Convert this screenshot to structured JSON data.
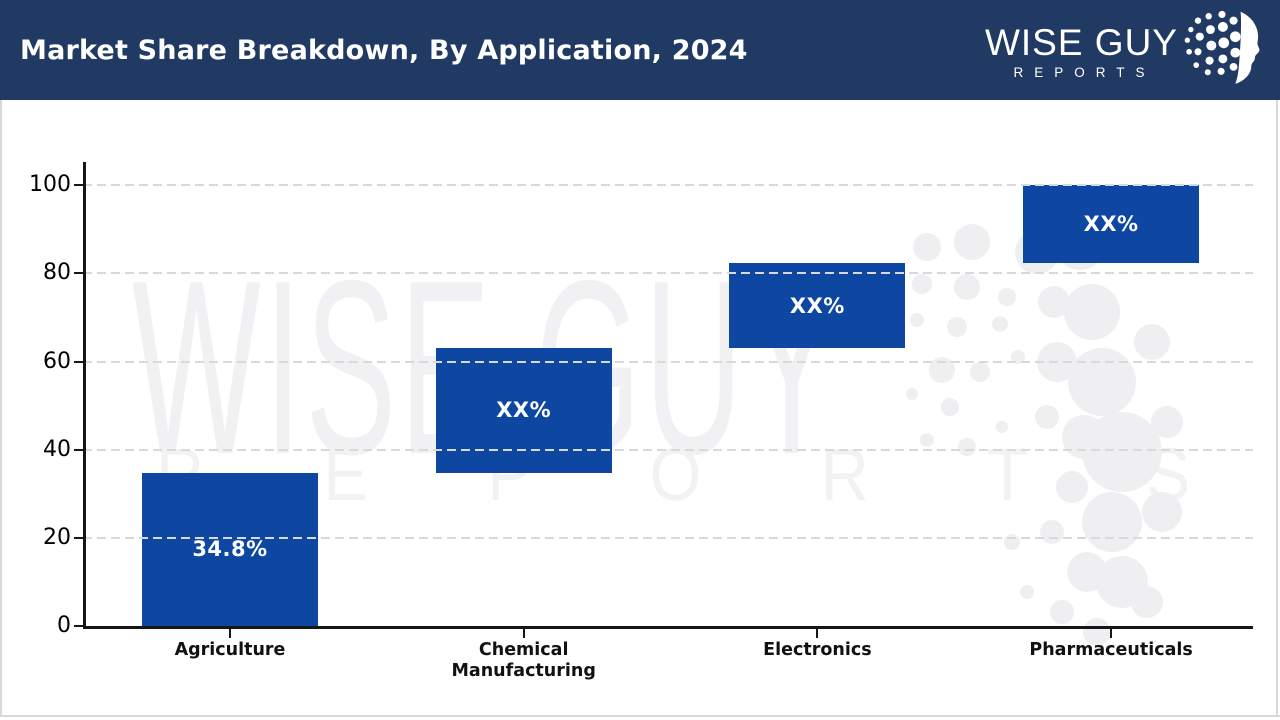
{
  "header": {
    "title": "Market Share Breakdown, By Application, 2024",
    "logo": {
      "line1": "WISE GUY",
      "line2": "REPORTS",
      "icon": "dotted-face-profile"
    }
  },
  "watermark": {
    "line1": "WISE GUY",
    "line2": "R E P O R T S",
    "icon": "dotted-face-profile-watermark"
  },
  "colors": {
    "header_bg": "#213a64",
    "bar": "#0d47a1",
    "bar_label": "#ffffff",
    "title_text": "#ffffff",
    "grid": "#d9d9d9",
    "axis": "#161616",
    "watermark": "#f0f0f2",
    "card_edge": "#d8d8d8"
  },
  "chart_data": {
    "type": "bar",
    "subtype": "floating-segment bars (waterfall-style market share breakdown)",
    "title": "Market Share Breakdown, By Application, 2024",
    "categories": [
      "Agriculture",
      "Chemical Manufacturing",
      "Electronics",
      "Pharmaceuticals"
    ],
    "category_label_lines": [
      [
        "Agriculture"
      ],
      [
        "Chemical",
        "Manufacturing"
      ],
      [
        "Electronics"
      ],
      [
        "Pharmaceuticals"
      ]
    ],
    "series": [
      {
        "name": "Market Share (%)",
        "segments": [
          {
            "category": "Agriculture",
            "start": 0,
            "end": 34.8,
            "label": "34.8%"
          },
          {
            "category": "Chemical Manufacturing",
            "start": 34.8,
            "end": 63,
            "label": "XX%"
          },
          {
            "category": "Electronics",
            "start": 63,
            "end": 82.3,
            "label": "XX%"
          },
          {
            "category": "Pharmaceuticals",
            "start": 82.3,
            "end": 100,
            "label": "XX%"
          }
        ]
      }
    ],
    "xlabel": "",
    "ylabel": "",
    "ylim": [
      0,
      100
    ],
    "yticks": [
      0,
      20,
      40,
      60,
      80,
      100
    ],
    "grid": "horizontal dashed",
    "legend": "none"
  }
}
